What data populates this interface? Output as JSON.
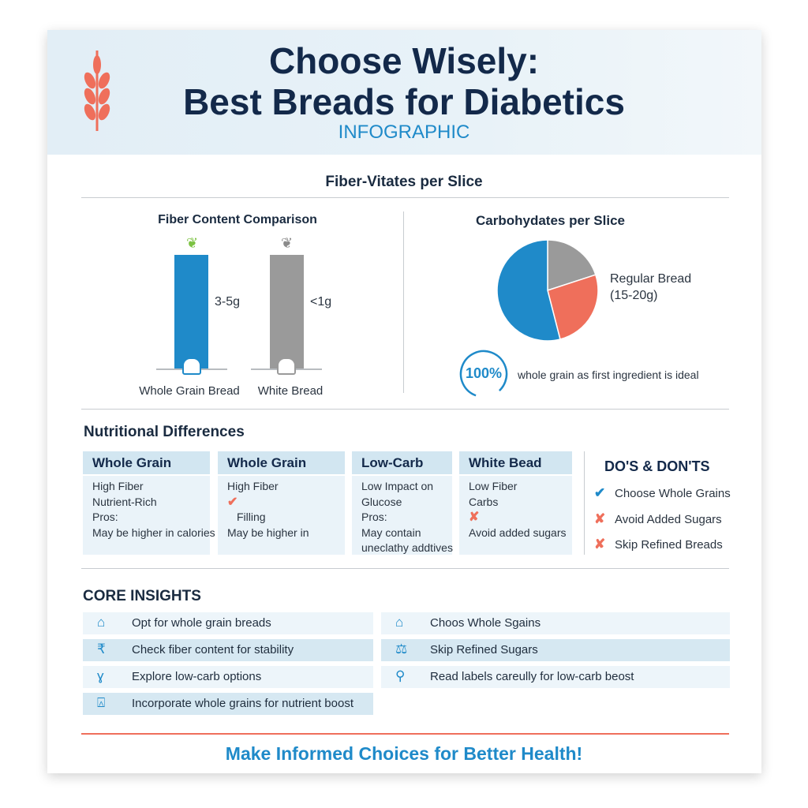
{
  "header": {
    "title_line1": "Choose Wisely:",
    "title_line2": "Best Breads for Diabetics",
    "subtitle": "INFOGRAPHIC",
    "logo_icon": "wheat-icon"
  },
  "section_title": "Fiber-Vitates per Slice",
  "fiber_chart": {
    "title": "Fiber Content Comparison",
    "type": "bar",
    "categories": [
      "Whole Grain Bread",
      "White Bread"
    ],
    "value_labels": [
      "3-5g",
      "<1g"
    ],
    "colors": [
      "#1f8ac9",
      "#9a9a9a"
    ]
  },
  "carb_chart": {
    "title": "Carbohydates per Slice",
    "type": "pie",
    "slices": [
      {
        "share": 20,
        "color": "#9a9a9a"
      },
      {
        "share": 26,
        "color": "#ef6f5b"
      },
      {
        "share": 54,
        "color": "#1f8ac9"
      }
    ],
    "legend": {
      "label": "Regular Bread",
      "value": "(15-20g)"
    }
  },
  "whole_grain_stat": {
    "value": "100%",
    "text": "whole grain as first ingredient is ideal"
  },
  "nutritional": {
    "title": "Nutritional Differences",
    "columns": [
      {
        "header": "Whole Grain",
        "lines": [
          "High Fiber",
          "Nutrient-Rich",
          "Pros:",
          "May be higher in calories"
        ]
      },
      {
        "header": "Whole Grain",
        "lines": [
          "High Fiber",
          "✔",
          "Filling",
          "May be higher in"
        ]
      },
      {
        "header": "Low-Carb",
        "lines": [
          "Low Impact on",
          "Glucose",
          "Pros:",
          "May contain",
          "uneclathy addtives"
        ]
      },
      {
        "header": "White Bead",
        "lines": [
          "Low Fiber",
          "Carbs",
          "✘",
          "Avoid added sugars"
        ]
      }
    ]
  },
  "dos_donts": {
    "title": "DO'S & DON'TS",
    "items": [
      {
        "icon": "check-icon",
        "glyph": "✔",
        "text": "Choose Whole Grains",
        "color": "#1f8ac9"
      },
      {
        "icon": "x-icon",
        "glyph": "✘",
        "text": "Avoid Added Sugars",
        "color": "#ef6f5b"
      },
      {
        "icon": "x-icon",
        "glyph": "✘",
        "text": "Skip Refined Breads",
        "color": "#ef6f5b"
      }
    ]
  },
  "core_insights": {
    "title": "CORE INSIGHTS",
    "left": [
      {
        "icon": "bread-icon",
        "glyph": "⌂",
        "text": "Opt for whole grain breads"
      },
      {
        "icon": "fiber-icon",
        "glyph": "₹",
        "text": "Check fiber content for stability"
      },
      {
        "icon": "wheat-icon",
        "glyph": "ɣ",
        "text": "Explore low-carb options"
      },
      {
        "icon": "jar-icon",
        "glyph": "⍓",
        "text": "Incorporate whole grains for nutrient boost"
      }
    ],
    "right": [
      {
        "icon": "bread-icon",
        "glyph": "⌂",
        "text": "Choos Whole Sgains"
      },
      {
        "icon": "scale-icon",
        "glyph": "⚖",
        "text": "Skip Refined Sugars"
      },
      {
        "icon": "magnifier-icon",
        "glyph": "⚲",
        "text": "Read labels careully for low-carb beost"
      }
    ]
  },
  "footer": "Make Informed Choices for Better Health!"
}
